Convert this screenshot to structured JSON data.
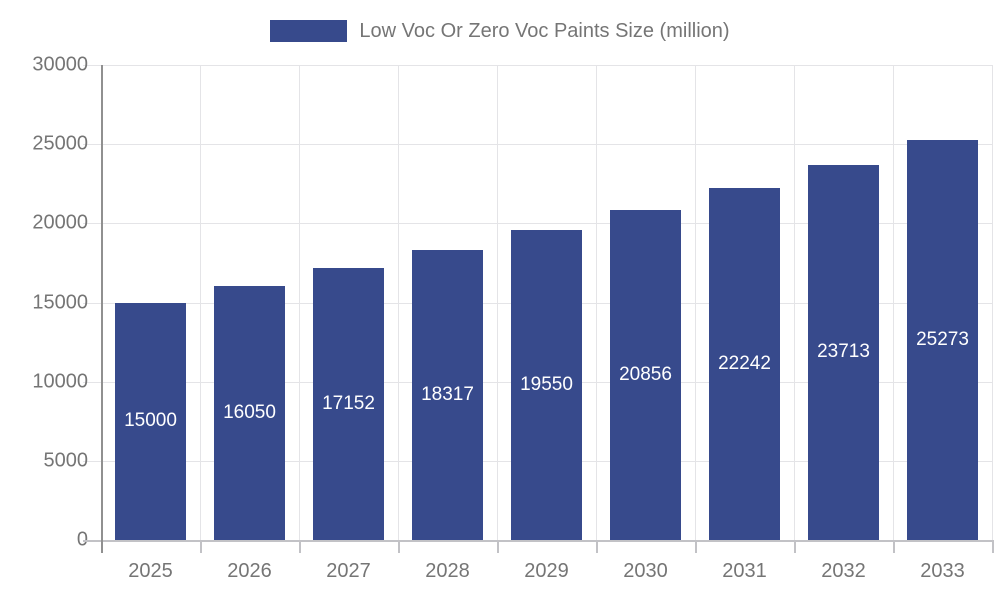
{
  "legend": {
    "label": "Low Voc Or Zero Voc Paints Size (million)",
    "swatch_color": "#374A8C"
  },
  "chart_data": {
    "type": "bar",
    "title": "",
    "categories": [
      "2025",
      "2026",
      "2027",
      "2028",
      "2029",
      "2030",
      "2031",
      "2032",
      "2033"
    ],
    "series": [
      {
        "name": "Low Voc Or Zero Voc Paints Size (million)",
        "values": [
          15000,
          16050,
          17152,
          18317,
          19550,
          20856,
          22242,
          23713,
          25273
        ]
      }
    ],
    "bar_labels_visible": true,
    "xlabel": "",
    "ylabel": "",
    "ylim": [
      0,
      30000
    ],
    "yticks": [
      0,
      5000,
      10000,
      15000,
      20000,
      25000,
      30000
    ],
    "grid": true,
    "legend_position": "top-center",
    "colors": {
      "bar": "#374A8C",
      "bar_label_text": "#ffffff",
      "axis_text": "#757575",
      "gridline": "#e4e4e7",
      "y_axis_line": "#909090",
      "x_axis_line": "#c2c2c6",
      "background": "#ffffff"
    }
  }
}
